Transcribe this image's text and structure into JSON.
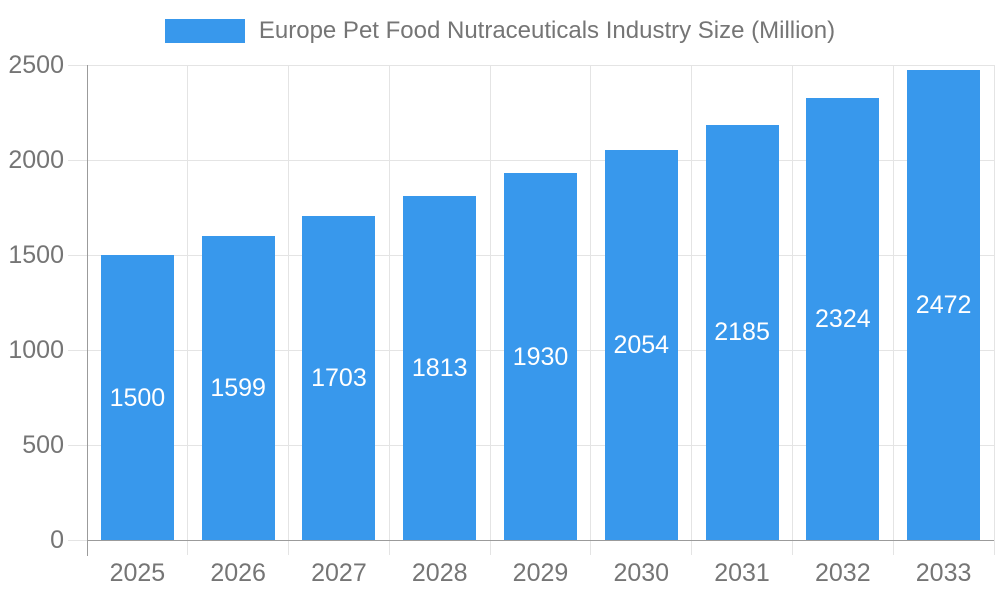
{
  "chart_data": {
    "type": "bar",
    "title": "Europe Pet Food Nutraceuticals Industry Size (Million)",
    "categories": [
      "2025",
      "2026",
      "2027",
      "2028",
      "2029",
      "2030",
      "2031",
      "2032",
      "2033"
    ],
    "series": [
      {
        "name": "Europe Pet Food Nutraceuticals Industry Size (Million)",
        "values": [
          1500,
          1599,
          1703,
          1813,
          1930,
          2054,
          2185,
          2324,
          2472
        ]
      }
    ],
    "bar_value_labels": [
      "1500",
      "1599",
      "1703",
      "1813",
      "1930",
      "2054",
      "2185",
      "2324",
      "2472"
    ],
    "xlabel": "",
    "ylabel": "",
    "ylim": [
      0,
      2500
    ],
    "yticks": [
      0,
      500,
      1000,
      1500,
      2000,
      2500
    ],
    "grid": true,
    "legend_position": "top",
    "colors": {
      "bar": "#3898EC",
      "bar_label_text": "#FFFFFF",
      "axis_text": "#757575",
      "gridline": "#E4E4E4",
      "axis_line": "#9B9B9B",
      "background": "#FFFFFF"
    }
  }
}
